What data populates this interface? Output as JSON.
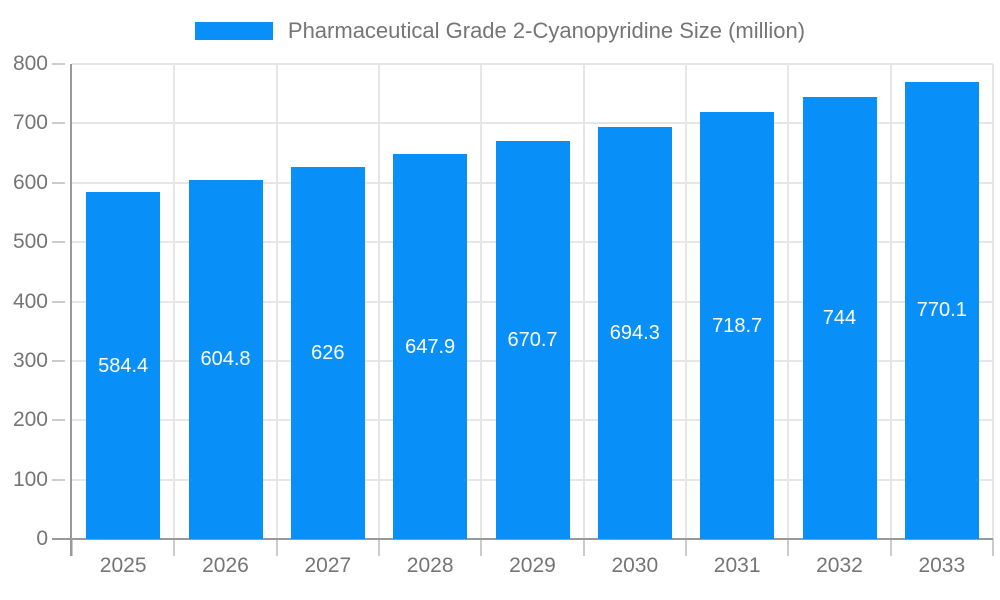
{
  "legend": {
    "label": "Pharmaceutical Grade 2-Cyanopyridine Size (million)"
  },
  "chart_data": {
    "type": "bar",
    "title": "Pharmaceutical Grade 2-Cyanopyridine Size (million)",
    "categories": [
      "2025",
      "2026",
      "2027",
      "2028",
      "2029",
      "2030",
      "2031",
      "2032",
      "2033"
    ],
    "series": [
      {
        "name": "Pharmaceutical Grade 2-Cyanopyridine Size (million)",
        "values": [
          584.4,
          604.8,
          626,
          647.9,
          670.7,
          694.3,
          718.7,
          744,
          770.1
        ]
      }
    ],
    "value_labels": [
      "584.4",
      "604.8",
      "626",
      "647.9",
      "670.7",
      "694.3",
      "718.7",
      "744",
      "770.1"
    ],
    "xlabel": "",
    "ylabel": "",
    "ylim": [
      0,
      800
    ],
    "yticks": [
      0,
      100,
      200,
      300,
      400,
      500,
      600,
      700,
      800
    ],
    "grid": true,
    "legend_position": "top",
    "colors": {
      "bar": "#0890f8",
      "bar_label": "#ffffff",
      "axis_text": "#757575",
      "grid": "#e6e6e6",
      "axis_line": "#999999",
      "tick": "#cccccc",
      "background": "#ffffff"
    }
  }
}
